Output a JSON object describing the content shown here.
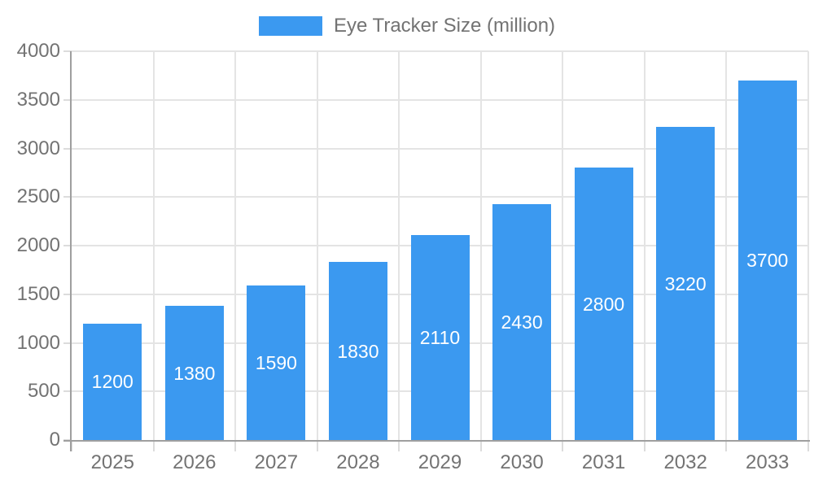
{
  "legend": {
    "label": "Eye Tracker Size (million)"
  },
  "colors": {
    "bar": "#3b99f0",
    "grid": "#e4e4e4",
    "tick": "#dcdcdc",
    "axis": "#9f9f9f",
    "text": "#737373",
    "value_text": "#ffffff",
    "background": "#ffffff"
  },
  "chart_data": {
    "type": "bar",
    "title": "",
    "categories": [
      "2025",
      "2026",
      "2027",
      "2028",
      "2029",
      "2030",
      "2031",
      "2032",
      "2033"
    ],
    "series": [
      {
        "name": "Eye Tracker Size (million)",
        "values": [
          1200,
          1380,
          1590,
          1830,
          2110,
          2430,
          2800,
          3220,
          3700
        ]
      }
    ],
    "xlabel": "",
    "ylabel": "",
    "ylim": [
      0,
      4000
    ],
    "yticks": [
      0,
      500,
      1000,
      1500,
      2000,
      2500,
      3000,
      3500,
      4000
    ],
    "grid": true,
    "legend_position": "top-center",
    "value_labels_position": "inside-center"
  }
}
